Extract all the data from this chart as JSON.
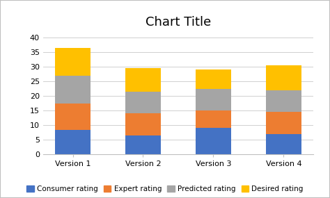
{
  "categories": [
    "Version 1",
    "Version 2",
    "Version 3",
    "Version 4"
  ],
  "series": {
    "Consumer rating": [
      8.5,
      6.5,
      9.0,
      7.0
    ],
    "Expert rating": [
      9.0,
      7.5,
      6.0,
      7.5
    ],
    "Predicted rating": [
      9.5,
      7.5,
      7.5,
      7.5
    ],
    "Desired rating": [
      9.5,
      8.0,
      6.5,
      8.5
    ]
  },
  "colors": {
    "Consumer rating": "#4472C4",
    "Expert rating": "#ED7D31",
    "Predicted rating": "#A5A5A5",
    "Desired rating": "#FFC000"
  },
  "title": "Chart Title",
  "ylim": [
    0,
    42
  ],
  "yticks": [
    0,
    5,
    10,
    15,
    20,
    25,
    30,
    35,
    40
  ],
  "title_fontsize": 13,
  "legend_fontsize": 7.5,
  "tick_fontsize": 8,
  "background_color": "#FFFFFF",
  "grid_color": "#D0D0D0",
  "border_color": "#BFBFBF",
  "bar_width": 0.5
}
